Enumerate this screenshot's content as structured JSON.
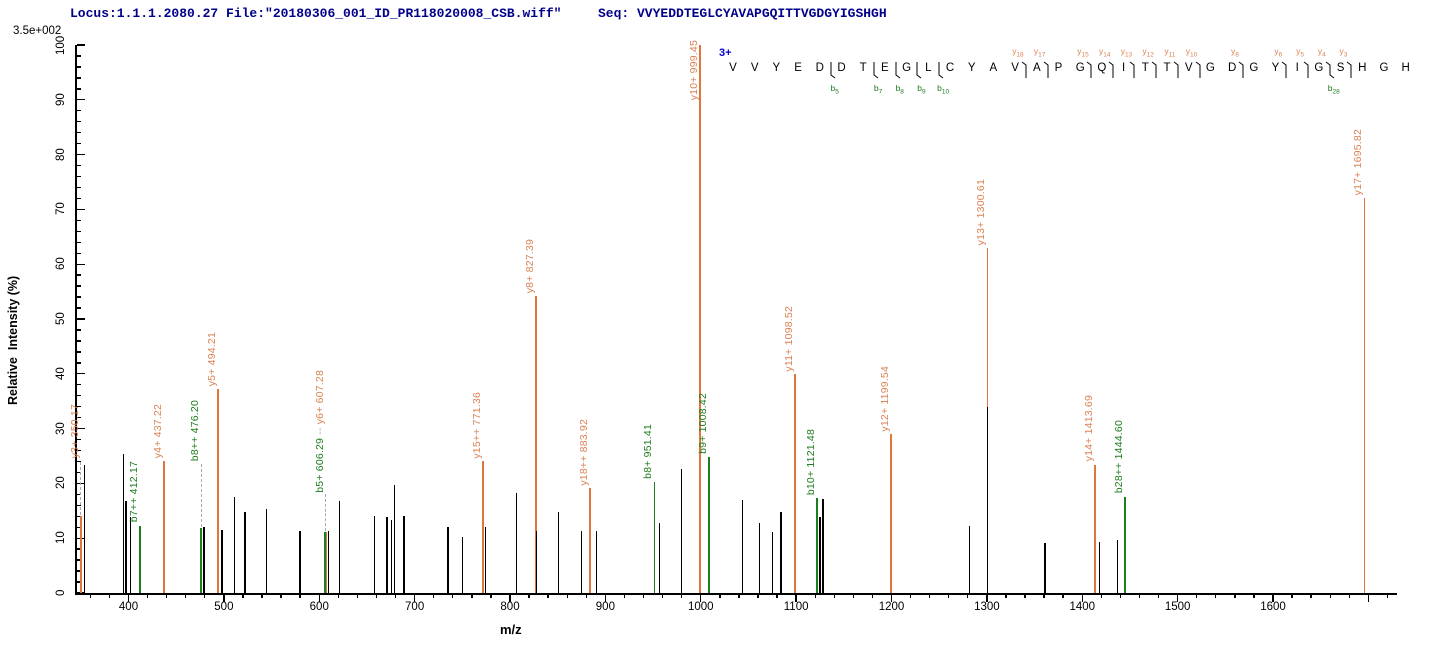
{
  "header": {
    "locus_file": "Locus:1.1.1.2080.27 File:\"20180306_001_ID_PR118020008_CSB.wiff\"",
    "seq": "Seq: VVYEDDTEGLCYAVAPGQITTVGDGYIGSHGH"
  },
  "scale_label": "3.5e+002",
  "y_axis_title": "Relative  Intensity (%)",
  "x_axis_title": "m/z",
  "colors": {
    "y_ion": "#E0763C",
    "y_ion_label": "#DB8254",
    "b_ion": "#1F7D1F",
    "unassigned": "#000000",
    "leader": "#AAAAAA",
    "header_navy": "#00008B",
    "charge_blue": "#0000CC"
  },
  "sequence_annotation": {
    "charge": "3+",
    "residues": "VVYEDDTEGLCYAVAPGQITTVGDGYIGSHGH",
    "y_ions": [
      {
        "n": 18,
        "after": 14
      },
      {
        "n": 17,
        "after": 15
      },
      {
        "n": 15,
        "after": 17
      },
      {
        "n": 14,
        "after": 18
      },
      {
        "n": 13,
        "after": 19
      },
      {
        "n": 12,
        "after": 20
      },
      {
        "n": 11,
        "after": 21
      },
      {
        "n": 10,
        "after": 22
      },
      {
        "n": 8,
        "after": 24
      },
      {
        "n": 6,
        "after": 26
      },
      {
        "n": 5,
        "after": 27
      },
      {
        "n": 4,
        "after": 28
      },
      {
        "n": 3,
        "after": 29
      }
    ],
    "b_ions": [
      {
        "n": 5,
        "after": 5
      },
      {
        "n": 7,
        "after": 7
      },
      {
        "n": 8,
        "after": 8
      },
      {
        "n": 9,
        "after": 9
      },
      {
        "n": 10,
        "after": 10
      },
      {
        "n": 28,
        "after": 28
      }
    ]
  },
  "chart_data": {
    "type": "bar",
    "subtype": "ms2_fragment_spectrum",
    "title": "",
    "xlabel": "m/z",
    "ylabel": "Relative  Intensity (%)",
    "x_axis": {
      "min": 346,
      "max": 1730,
      "minor_step": 20,
      "major_step": 100,
      "tick_labels": [
        400,
        500,
        600,
        700,
        800,
        900,
        1000,
        1100,
        1200,
        1300,
        1400,
        1500,
        1600
      ]
    },
    "y_axis": {
      "min": 0,
      "max": 100,
      "minor_step": 2,
      "major_step": 10,
      "tick_labels": [
        0,
        10,
        20,
        30,
        40,
        50,
        60,
        70,
        80,
        90,
        100
      ]
    },
    "series": [
      {
        "name": "y-ions",
        "points": [
          {
            "label": "y3+ 350.17",
            "mz": 350.17,
            "rel": 14.0,
            "leader_to": 24.0
          },
          {
            "label": "y4+ 437.22",
            "mz": 437.22,
            "rel": 24.1
          },
          {
            "label": "y5+ 494.21",
            "mz": 494.21,
            "rel": 37.2
          },
          {
            "label": "y6+ 607.28",
            "mz": 607.28,
            "rel": 11.2,
            "combined": true
          },
          {
            "label": "y15++ 771.36",
            "mz": 771.36,
            "rel": 24.0
          },
          {
            "label": "y8+ 827.39",
            "mz": 827.39,
            "rel": 54.2
          },
          {
            "label": "y18++ 883.92",
            "mz": 883.92,
            "rel": 19.1
          },
          {
            "label": "y10+ 999.45",
            "mz": 999.45,
            "rel": 100.0
          },
          {
            "label": "y11+ 1098.52",
            "mz": 1098.52,
            "rel": 39.9
          },
          {
            "label": "y12+ 1199.54",
            "mz": 1199.54,
            "rel": 29.0
          },
          {
            "label": "y13+ 1300.61",
            "mz": 1300.61,
            "rel": 62.9
          },
          {
            "label": "y14+ 1413.69",
            "mz": 1413.69,
            "rel": 23.4
          },
          {
            "label": "y17+ 1695.82",
            "mz": 1695.82,
            "rel": 72.0
          }
        ]
      },
      {
        "name": "b-ions",
        "points": [
          {
            "label": "b7++ 412.17",
            "mz": 412.17,
            "rel": 12.3
          },
          {
            "label": "b8++ 476.20",
            "mz": 476.2,
            "rel": 11.8,
            "leader_to": 23.5
          },
          {
            "label": "b5+ 606.29",
            "mz": 606.29,
            "rel": 11.2,
            "combined": true
          },
          {
            "label": "b8+ 951.41",
            "mz": 951.41,
            "rel": 20.3
          },
          {
            "label": "b9+ 1008.42",
            "mz": 1008.42,
            "rel": 24.8
          },
          {
            "label": "b10+ 1121.48",
            "mz": 1121.48,
            "rel": 17.3
          },
          {
            "label": "b28++ 1444.60",
            "mz": 1444.6,
            "rel": 17.6
          }
        ]
      },
      {
        "name": "unassigned",
        "points": [
          {
            "mz": 354.0,
            "rel": 23.3
          },
          {
            "mz": 394.5,
            "rel": 25.3
          },
          {
            "mz": 397.5,
            "rel": 16.7
          },
          {
            "mz": 402.0,
            "rel": 13.9
          },
          {
            "mz": 479.0,
            "rel": 12.1
          },
          {
            "mz": 498.0,
            "rel": 11.5
          },
          {
            "mz": 511.0,
            "rel": 17.5
          },
          {
            "mz": 522.0,
            "rel": 14.8
          },
          {
            "mz": 545.0,
            "rel": 15.4
          },
          {
            "mz": 580.0,
            "rel": 11.4
          },
          {
            "mz": 610.0,
            "rel": 11.3
          },
          {
            "mz": 621.0,
            "rel": 16.7
          },
          {
            "mz": 658.0,
            "rel": 14.1
          },
          {
            "mz": 671.0,
            "rel": 13.9
          },
          {
            "mz": 675.5,
            "rel": 13.3
          },
          {
            "mz": 678.7,
            "rel": 19.7
          },
          {
            "mz": 689.0,
            "rel": 14.1
          },
          {
            "mz": 735.0,
            "rel": 12.1
          },
          {
            "mz": 750.0,
            "rel": 10.3
          },
          {
            "mz": 774.0,
            "rel": 12.1
          },
          {
            "mz": 807.0,
            "rel": 18.3
          },
          {
            "mz": 828.0,
            "rel": 11.3
          },
          {
            "mz": 851.0,
            "rel": 14.7
          },
          {
            "mz": 875.0,
            "rel": 11.3
          },
          {
            "mz": 891.0,
            "rel": 11.3
          },
          {
            "mz": 956.6,
            "rel": 12.7
          },
          {
            "mz": 980.0,
            "rel": 22.6
          },
          {
            "mz": 1044.0,
            "rel": 17.0
          },
          {
            "mz": 1061.5,
            "rel": 12.7
          },
          {
            "mz": 1075.0,
            "rel": 11.2
          },
          {
            "mz": 1084.0,
            "rel": 14.8
          },
          {
            "mz": 1125.0,
            "rel": 13.9
          },
          {
            "mz": 1128.0,
            "rel": 17.1
          },
          {
            "mz": 1282.0,
            "rel": 12.2
          },
          {
            "mz": 1300.6,
            "rel": 34.0
          },
          {
            "mz": 1361.0,
            "rel": 9.1
          },
          {
            "mz": 1418.0,
            "rel": 9.4
          },
          {
            "mz": 1437.0,
            "rel": 9.7
          }
        ]
      }
    ],
    "combined_label": {
      "mz": 606.9,
      "bottom_rel": 18.0,
      "leader_from": 11.4,
      "parts": [
        "b5+ 606.29",
        "y6+ 607.28"
      ],
      "separator": "--"
    }
  }
}
